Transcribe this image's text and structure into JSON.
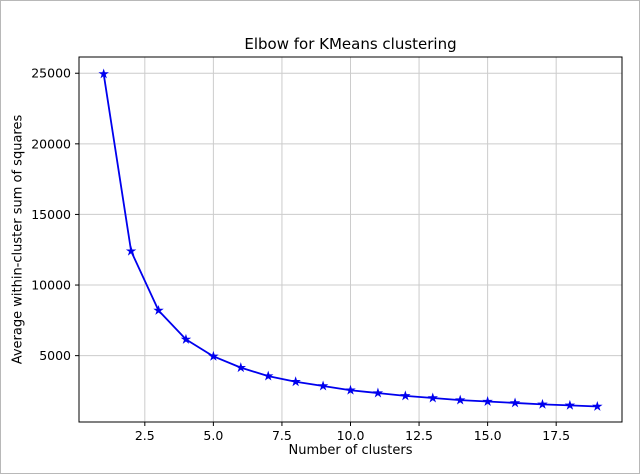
{
  "chart_data": {
    "type": "line",
    "title": "Elbow for KMeans clustering",
    "xlabel": "Number of clusters",
    "ylabel": "Average within-cluster sum of squares",
    "legend": null,
    "grid": true,
    "marker": "star",
    "line_color": "#0000ee",
    "grid_color": "#cccccc",
    "spine_color": "#000000",
    "x": [
      1,
      2,
      3,
      4,
      5,
      6,
      7,
      8,
      9,
      10,
      11,
      12,
      13,
      14,
      15,
      16,
      17,
      18,
      19
    ],
    "y": [
      24950,
      12400,
      8200,
      6150,
      4950,
      4150,
      3550,
      3150,
      2850,
      2550,
      2350,
      2150,
      2000,
      1850,
      1750,
      1650,
      1550,
      1480,
      1400
    ],
    "xlim": [
      0.1,
      19.9
    ],
    "ylim": [
      300,
      26150
    ],
    "xtick_values": [
      2.5,
      5.0,
      7.5,
      10.0,
      12.5,
      15.0,
      17.5
    ],
    "xtick_labels": [
      "2.5",
      "5.0",
      "7.5",
      "10.0",
      "12.5",
      "15.0",
      "17.5"
    ],
    "ytick_values": [
      5000,
      10000,
      15000,
      20000,
      25000
    ],
    "ytick_labels": [
      "5000",
      "10000",
      "15000",
      "20000",
      "25000"
    ]
  }
}
